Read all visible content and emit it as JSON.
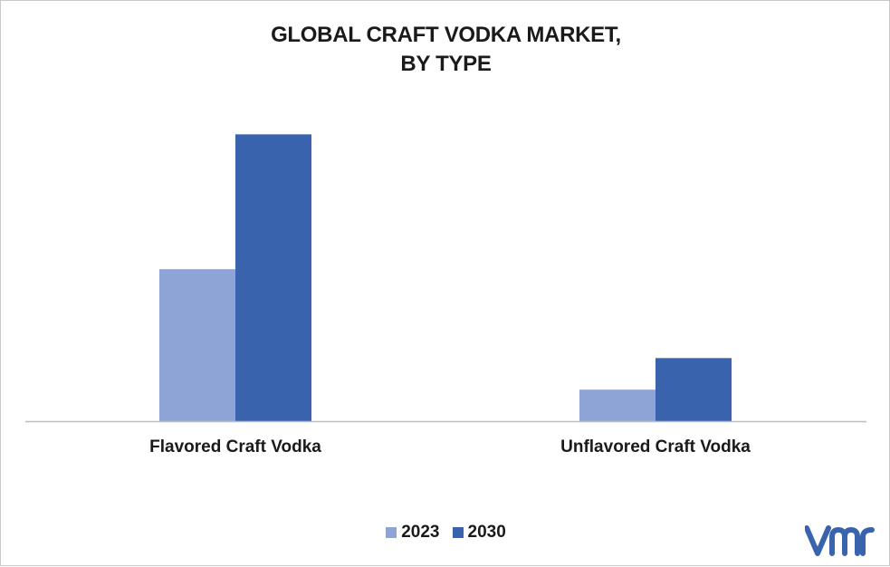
{
  "chart_data": {
    "type": "bar",
    "title_lines": [
      "GLOBAL CRAFT VODKA MARKET,",
      "BY TYPE"
    ],
    "categories": [
      "Flavored Craft Vodka",
      "Unflavored Craft Vodka"
    ],
    "series": [
      {
        "name": "2023",
        "values": [
          5.3,
          1.1
        ],
        "color": "#8FA4D6"
      },
      {
        "name": "2030",
        "values": [
          10.0,
          2.2
        ],
        "color": "#3A63AD"
      }
    ],
    "ylim": [
      0,
      10.8
    ],
    "grid": false,
    "legend_position": "bottom"
  },
  "logo": {
    "icon": "vmr-logo-icon",
    "color": "#3A63AD"
  }
}
